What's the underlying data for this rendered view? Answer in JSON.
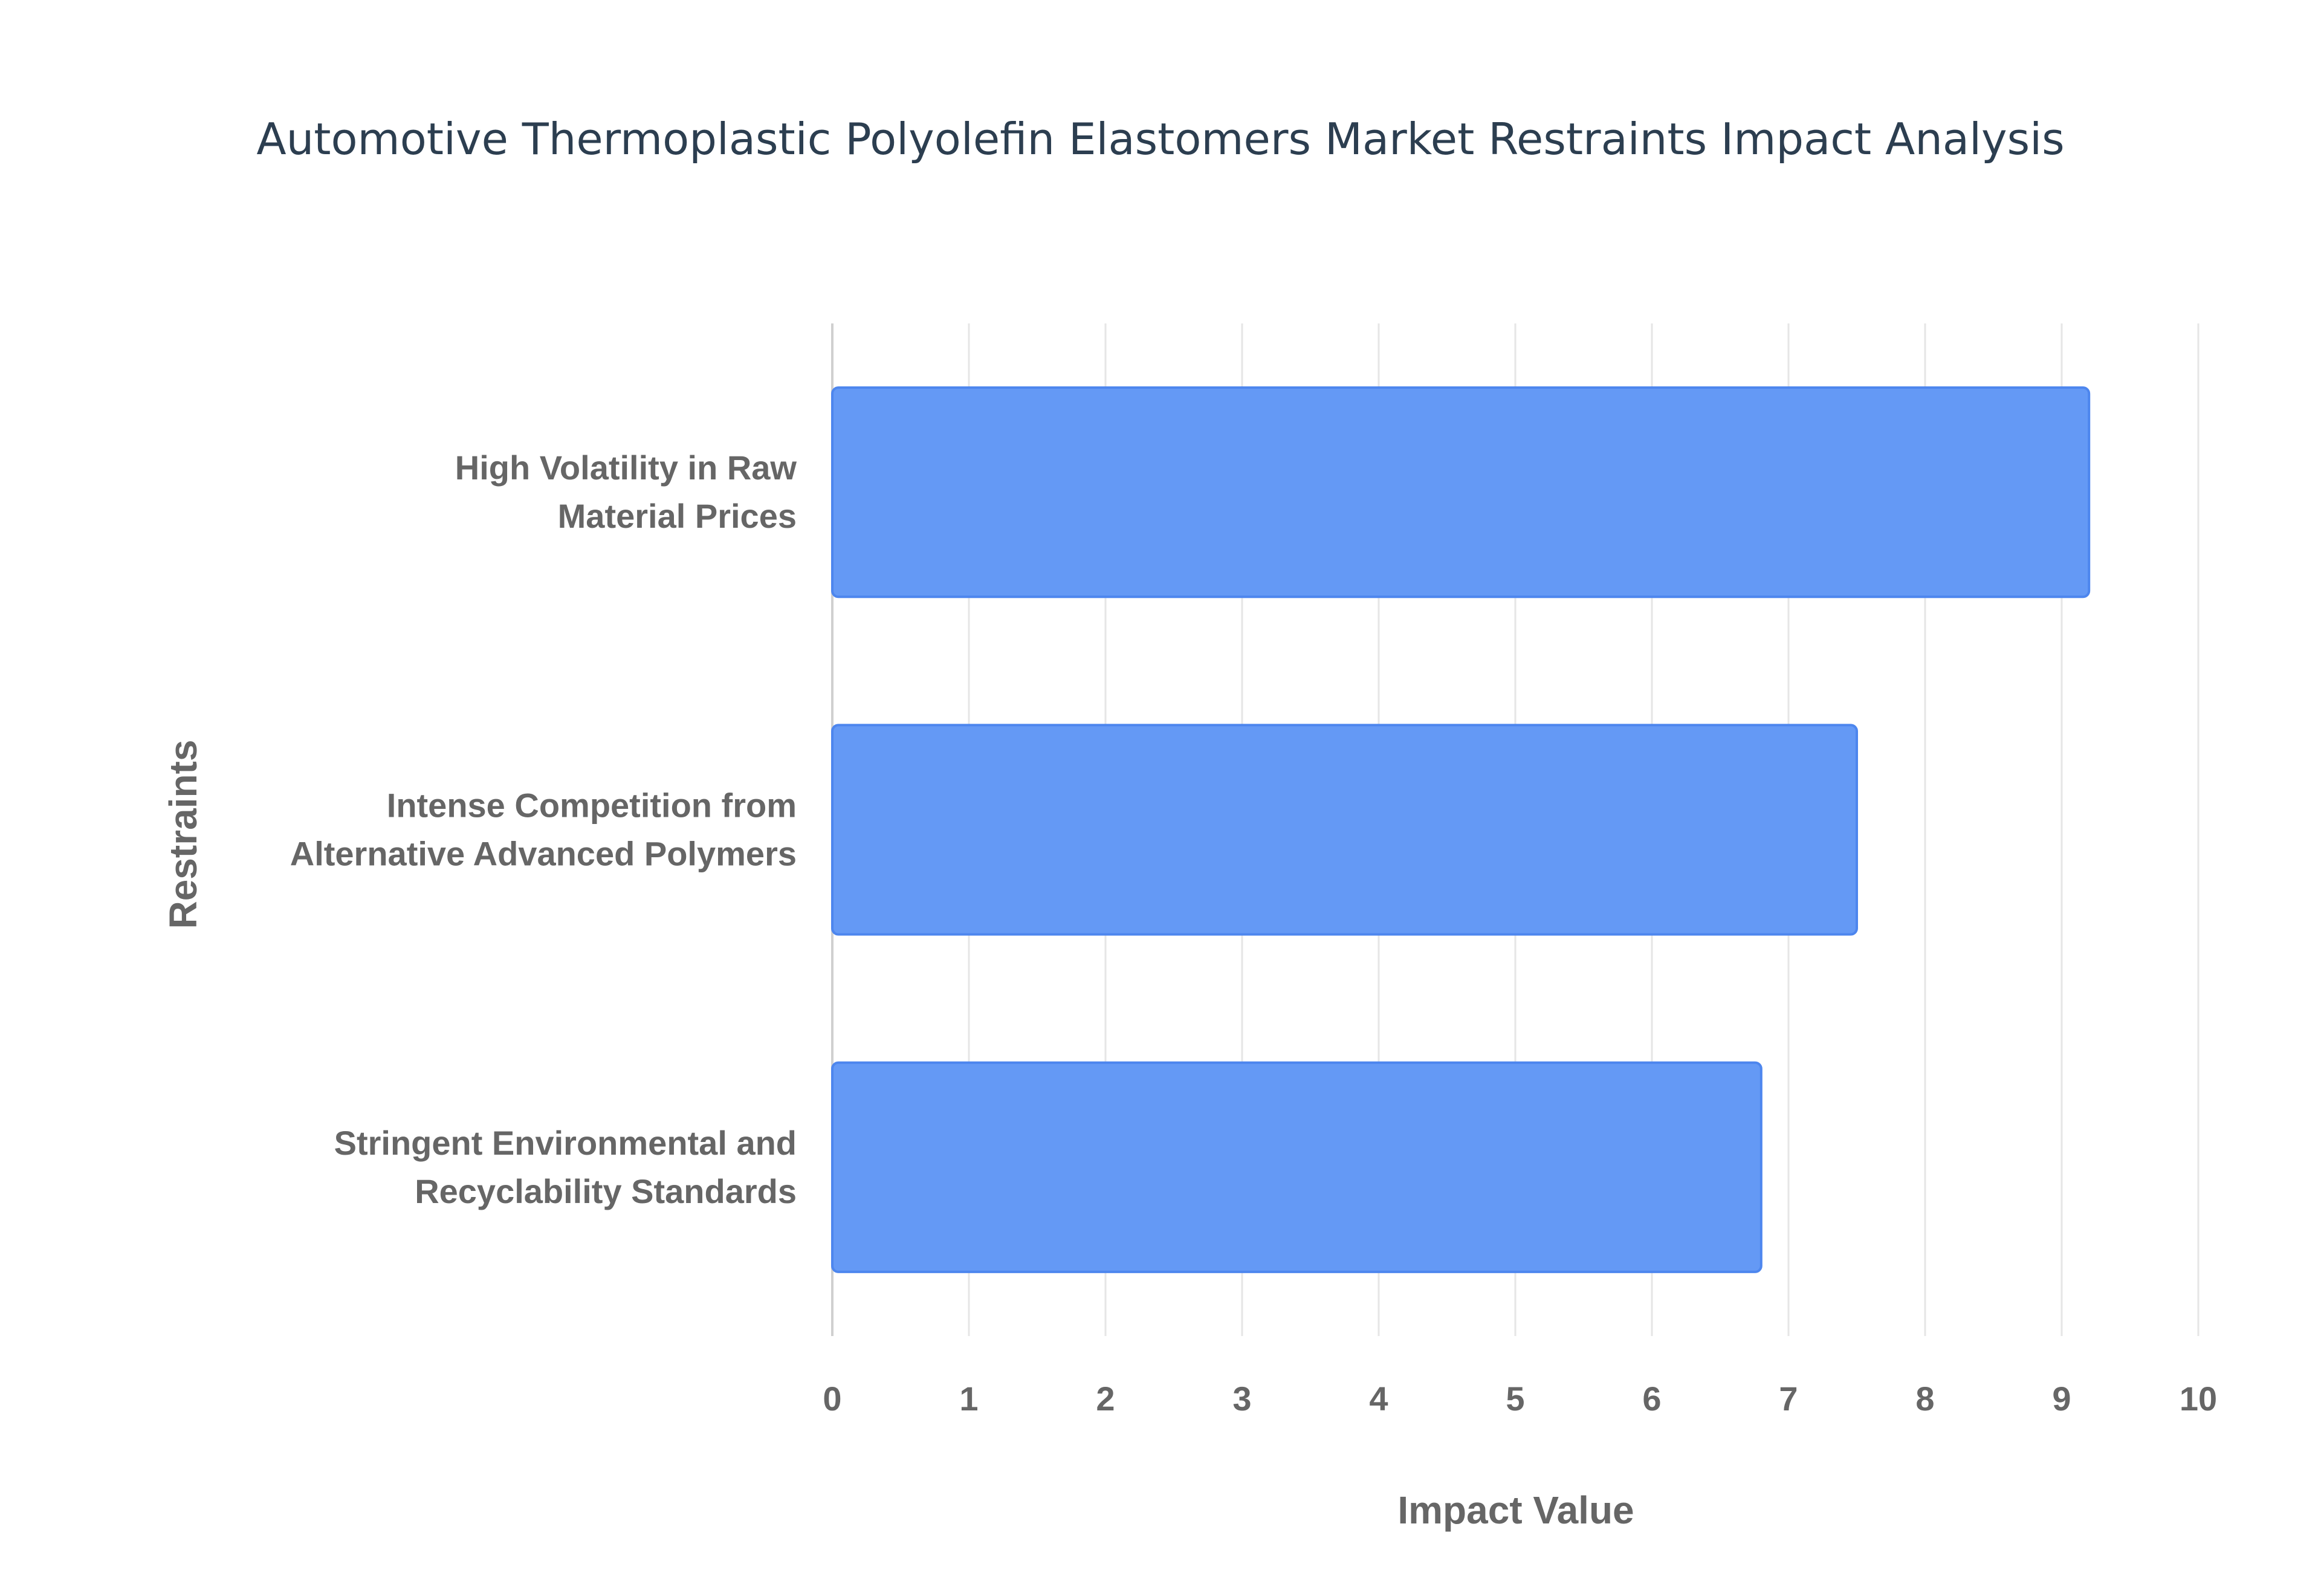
{
  "chart_data": {
    "type": "bar",
    "orientation": "horizontal",
    "title": "Automotive Thermoplastic Polyolefin Elastomers Market Restraints Impact Analysis",
    "xlabel": "Impact Value",
    "ylabel": "Restraints",
    "categories": [
      [
        "High Volatility in Raw",
        "Material Prices"
      ],
      [
        "Intense Competition from",
        "Alternative Advanced Polymers"
      ],
      [
        "Stringent Environmental and",
        "Recyclability Standards"
      ]
    ],
    "values": [
      9.2,
      7.5,
      6.8
    ],
    "xlim": [
      0,
      10
    ],
    "xticks": [
      "0",
      "1",
      "2",
      "3",
      "4",
      "5",
      "6",
      "7",
      "8",
      "9",
      "10"
    ],
    "grid": true,
    "bar_color": "#6499f5",
    "bar_border_color": "#4d86ee"
  }
}
